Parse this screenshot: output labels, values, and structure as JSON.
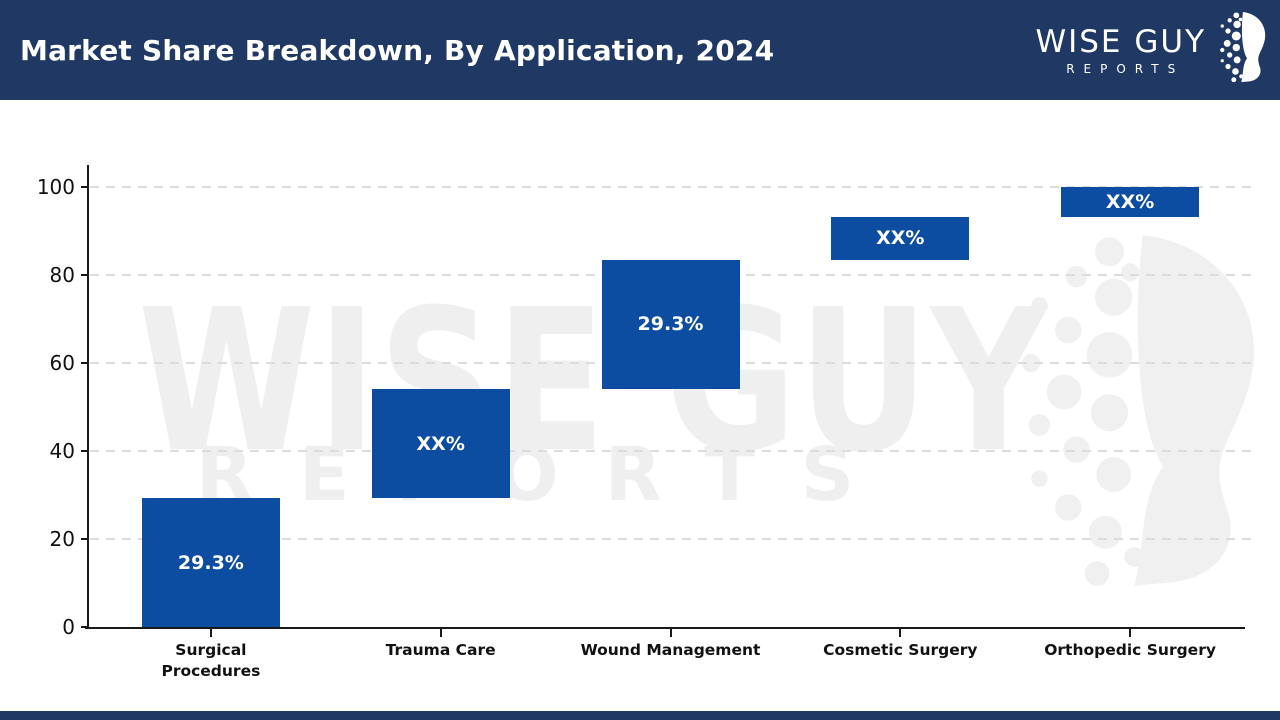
{
  "header": {
    "title": "Market Share Breakdown, By Application, 2024",
    "bg_color": "#203864",
    "logo": {
      "line1": "WISE GUY",
      "line2": "REPORTS"
    }
  },
  "footer": {
    "bg_color": "#203864"
  },
  "watermark": {
    "line1": "WISE GUY",
    "line2": "REPORTS"
  },
  "chart_data": {
    "type": "bar",
    "subtype": "waterfall",
    "title": "Market Share Breakdown, By Application, 2024",
    "categories": [
      "Surgical Procedures",
      "Trauma Care",
      "Wound Management",
      "Cosmetic Surgery",
      "Orthopedic Surgery"
    ],
    "xtick_labels": [
      "Surgical\nProcedures",
      "Trauma Care",
      "Wound Management",
      "Cosmetic Surgery",
      "Orthopedic Surgery"
    ],
    "segments": [
      {
        "category": "Surgical Procedures",
        "start": 0,
        "end": 29.3,
        "label": "29.3%"
      },
      {
        "category": "Trauma Care",
        "start": 29.3,
        "end": 54.1,
        "label": "XX%"
      },
      {
        "category": "Wound Management",
        "start": 54.1,
        "end": 83.4,
        "label": "29.3%"
      },
      {
        "category": "Cosmetic Surgery",
        "start": 83.4,
        "end": 93.2,
        "label": "XX%"
      },
      {
        "category": "Orthopedic Surgery",
        "start": 93.2,
        "end": 100,
        "label": "XX%"
      }
    ],
    "xlabel": "",
    "ylabel": "",
    "ylim": [
      0,
      104
    ],
    "yticks": [
      0,
      20,
      40,
      60,
      80,
      100
    ],
    "grid": "horizontal-dashed",
    "legend": "none",
    "bar_color": "#0d4da1",
    "bar_label_color": "#ffffff",
    "axis_color": "#1a1a1a"
  }
}
